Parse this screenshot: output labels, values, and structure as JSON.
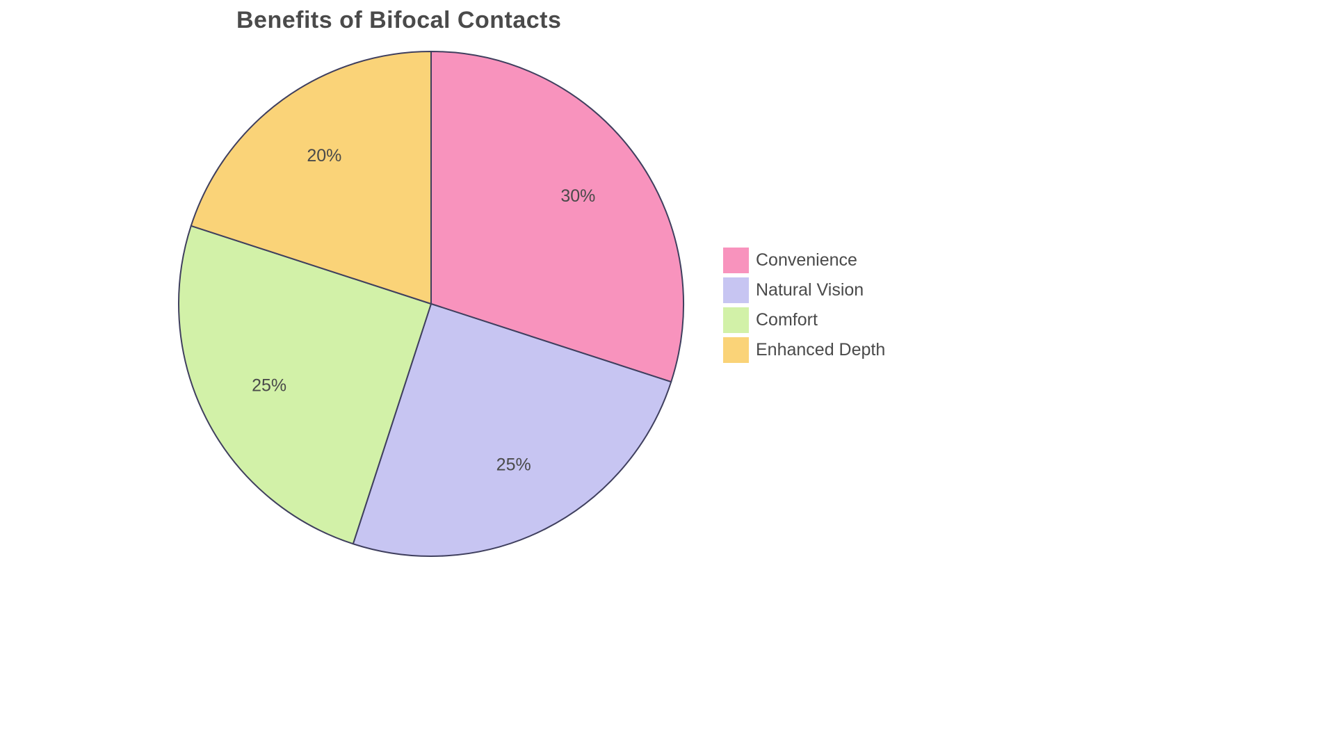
{
  "title": "Benefits of Bifocal Contacts",
  "colors": {
    "background": "#FFFFFF",
    "slice_border": "#3F3F5E",
    "title_text": "#4A4A4A",
    "label_text": "#4A4A4A"
  },
  "chart_data": {
    "type": "pie",
    "title": "Benefits of Bifocal Contacts",
    "labels": [
      "Convenience",
      "Natural Vision",
      "Comfort",
      "Enhanced Depth"
    ],
    "values": [
      30,
      25,
      25,
      20
    ],
    "value_labels": [
      "30%",
      "25%",
      "25%",
      "20%"
    ],
    "colors": [
      "#F893BD",
      "#C7C5F2",
      "#D2F1A8",
      "#FAD378"
    ],
    "start_angle_deg": 0,
    "direction": "clockwise",
    "legend_position": "right"
  },
  "legend": {
    "items": [
      {
        "label": "Convenience",
        "color": "#F893BD"
      },
      {
        "label": "Natural Vision",
        "color": "#C7C5F2"
      },
      {
        "label": "Comfort",
        "color": "#D2F1A8"
      },
      {
        "label": "Enhanced Depth",
        "color": "#FAD378"
      }
    ]
  }
}
